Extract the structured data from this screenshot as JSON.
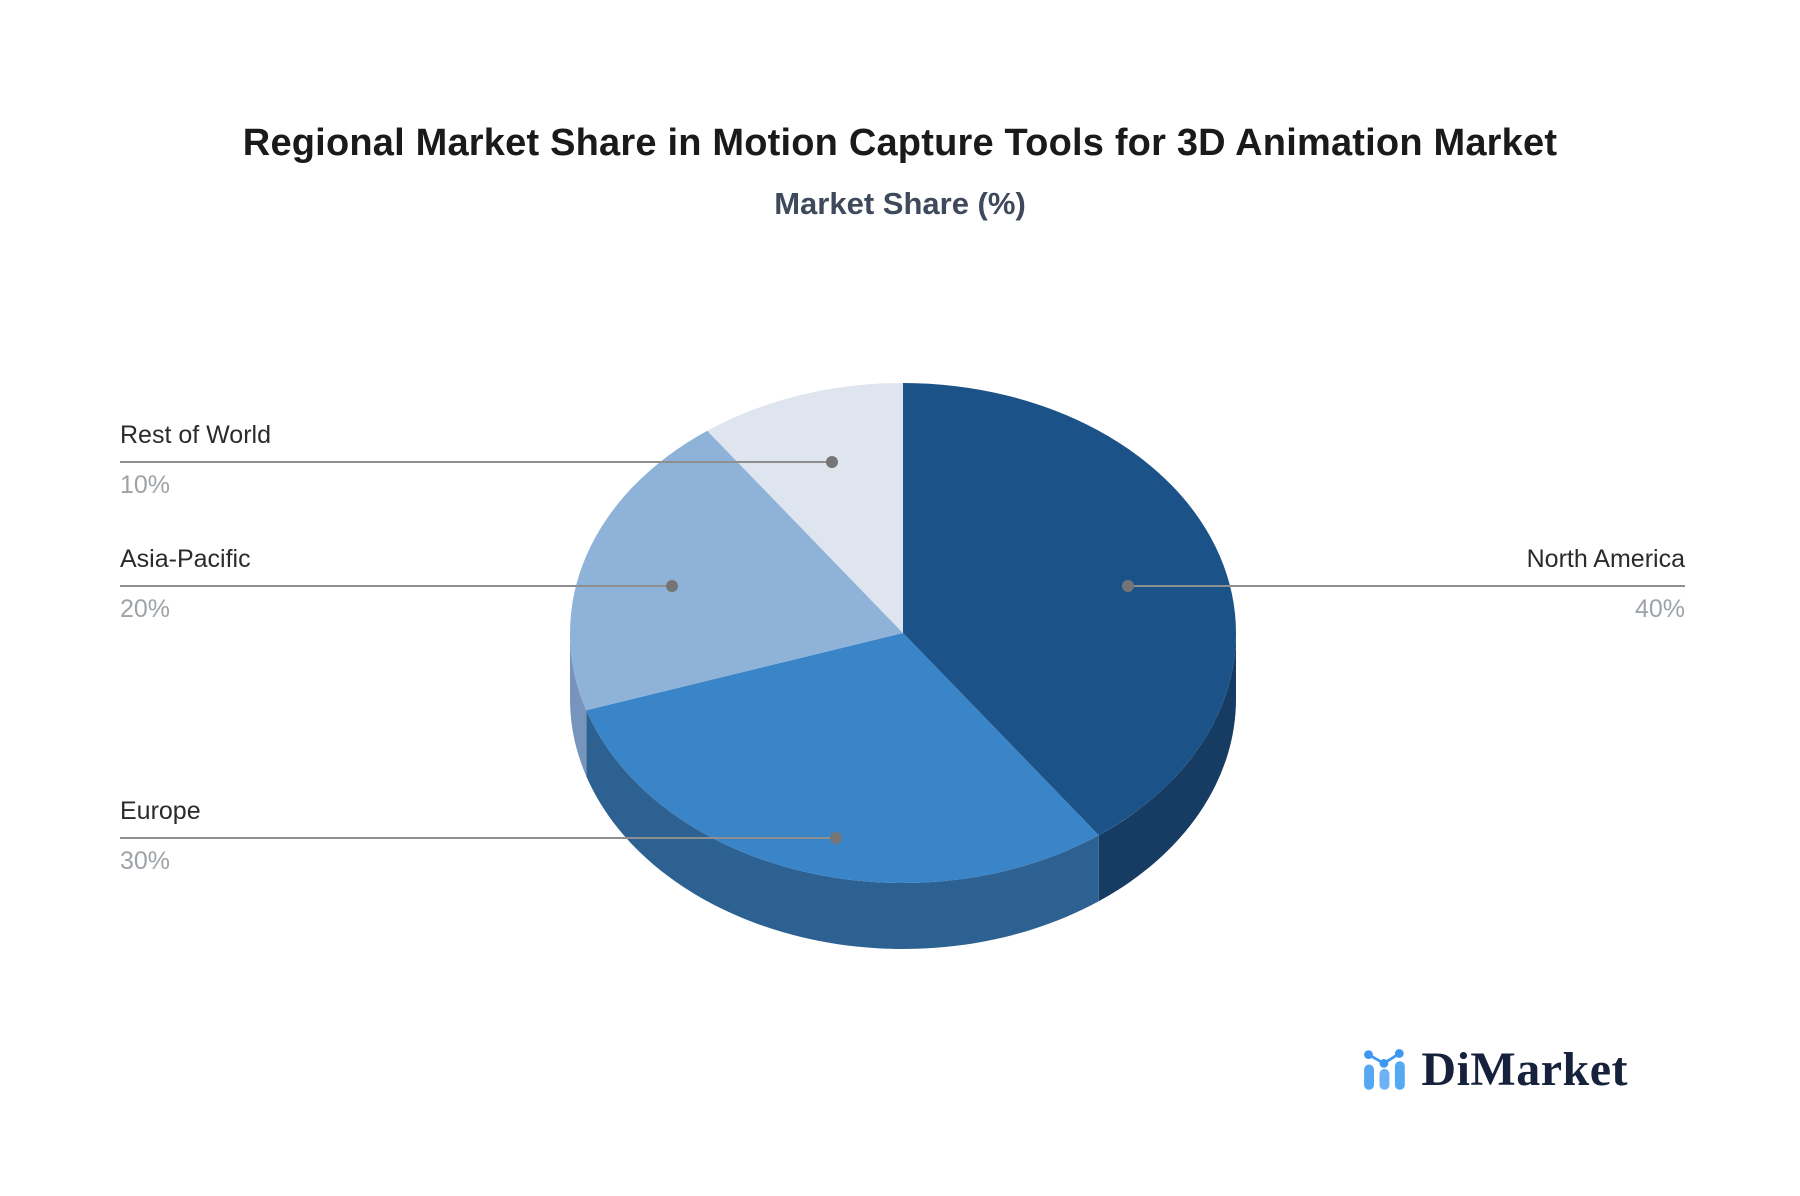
{
  "title": "Regional Market Share in Motion Capture Tools for 3D Animation Market",
  "subtitle": "Market Share (%)",
  "branding": {
    "name": "DiMarket",
    "icon": "mini-bar-chart-icon"
  },
  "chart_data": {
    "type": "pie",
    "effect": "3d",
    "unit": "%",
    "title": "Regional Market Share in Motion Capture Tools for 3D Animation Market",
    "subtitle": "Market Share (%)",
    "direction": "clockwise",
    "start_angle_deg": 0,
    "categories": [
      "North America",
      "Europe",
      "Asia-Pacific",
      "Rest of World"
    ],
    "values": [
      40,
      30,
      20,
      10
    ],
    "colors": [
      "#1B5389",
      "#3A84C8",
      "#8FB2D9",
      "#DEE5EF"
    ],
    "side_colors": [
      "#163C63",
      "#2D6191",
      "#7795BC",
      "#B9C4D4"
    ],
    "callouts": [
      {
        "label": "North America",
        "value_text": "40%",
        "side": "right"
      },
      {
        "label": "Europe",
        "value_text": "30%",
        "side": "left"
      },
      {
        "label": "Asia-Pacific",
        "value_text": "20%",
        "side": "left"
      },
      {
        "label": "Rest of World",
        "value_text": "10%",
        "side": "left"
      }
    ],
    "label_color": "#2B2B2B",
    "value_color": "#9EA3A8",
    "line_color": "#8F8F8F",
    "dot_color": "#757575",
    "legend": "none",
    "background": "#FFFFFF"
  }
}
